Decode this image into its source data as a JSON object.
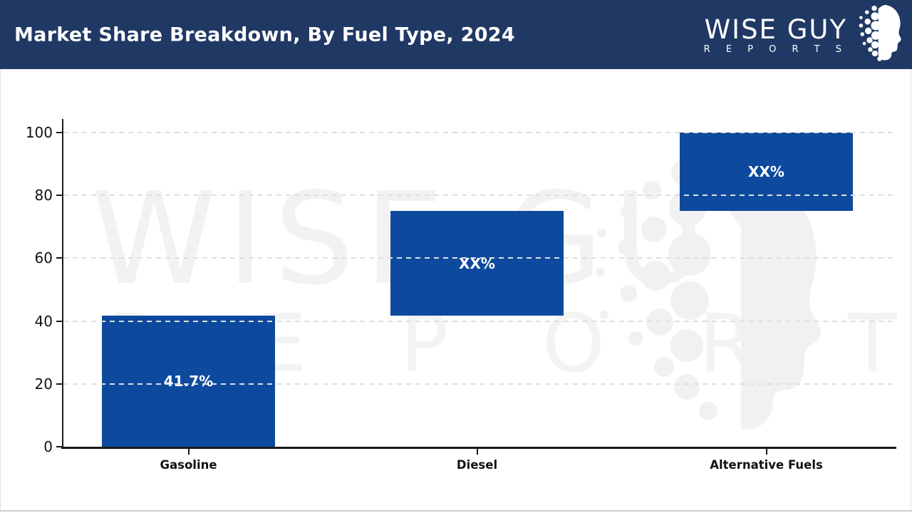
{
  "header": {
    "title": "Market Share Breakdown, By Fuel Type, 2024",
    "logo": {
      "line1": "WISE GUY",
      "line2": "R E P O R T S"
    }
  },
  "watermark": {
    "line1": "WISE GUY",
    "line2": "R E P O R T S"
  },
  "colors": {
    "header_bg": "#203864",
    "bar": "#0d4a9e",
    "bar_label": "#ffffff",
    "grid": "#dfdfdf",
    "axis": "#1a1a1a",
    "watermark": "#f2f2f2"
  },
  "chart_data": {
    "type": "bar",
    "subtype": "waterfall",
    "title": "Market Share Breakdown, By Fuel Type, 2024",
    "categories": [
      "Gasoline",
      "Diesel",
      "Alternative Fuels"
    ],
    "segments": [
      {
        "category": "Gasoline",
        "start": 0,
        "end": 41.7,
        "label": "41.7%"
      },
      {
        "category": "Diesel",
        "start": 41.7,
        "end": 75,
        "label": "XX%"
      },
      {
        "category": "Alternative Fuels",
        "start": 75,
        "end": 100,
        "label": "XX%"
      }
    ],
    "xlabel": "",
    "ylabel": "",
    "ylim": [
      0,
      100
    ],
    "yticks": [
      0,
      20,
      40,
      60,
      80,
      100
    ],
    "grid": "dashed-horizontal",
    "legend": "none"
  }
}
